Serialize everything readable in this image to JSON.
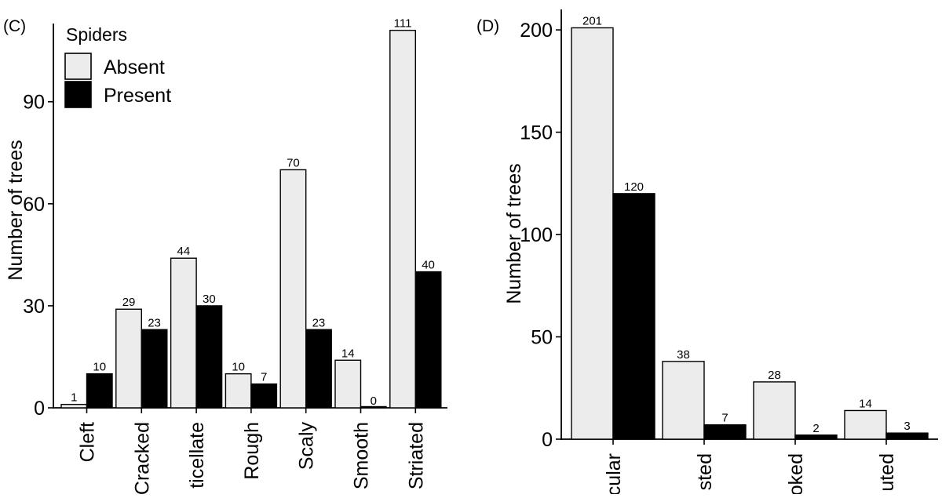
{
  "chart_data": [
    {
      "type": "bar",
      "panel_label": "(C)",
      "ylabel": "Number of trees",
      "xlabel": "",
      "ylim": [
        0,
        113
      ],
      "yticks": [
        0,
        30,
        60,
        90
      ],
      "categories": [
        "Cleft",
        "Cracked",
        "Reticellate",
        "Rough",
        "Scaly",
        "Smooth",
        "Striated"
      ],
      "category_labels_shown": [
        "Cleft",
        "Cracked",
        "ticellate",
        "Rough",
        "Scaly",
        "Smooth",
        "Striated"
      ],
      "series": [
        {
          "name": "Absent",
          "color": "#ececec",
          "values": [
            1,
            29,
            44,
            10,
            70,
            14,
            111
          ]
        },
        {
          "name": "Present",
          "color": "#000000",
          "values": [
            10,
            23,
            30,
            7,
            23,
            0,
            40
          ]
        }
      ],
      "data_labels": true,
      "legend": {
        "title": "Spiders",
        "placement": "top-left",
        "entries": [
          "Absent",
          "Present"
        ]
      },
      "grid": false
    },
    {
      "type": "bar",
      "panel_label": "(D)",
      "ylabel": "Number of trees",
      "xlabel": "",
      "ylim": [
        0,
        210
      ],
      "yticks": [
        0,
        50,
        100,
        150,
        200
      ],
      "categories": [
        "Circular",
        "Twisted",
        "Crooked",
        "Fluted"
      ],
      "category_labels_shown": [
        "cular",
        "sted",
        "oked",
        "uted"
      ],
      "series": [
        {
          "name": "Absent",
          "color": "#ececec",
          "values": [
            201,
            38,
            28,
            14
          ]
        },
        {
          "name": "Present",
          "color": "#000000",
          "values": [
            120,
            7,
            2,
            3
          ]
        }
      ],
      "data_labels": true,
      "legend": null,
      "grid": false
    }
  ]
}
